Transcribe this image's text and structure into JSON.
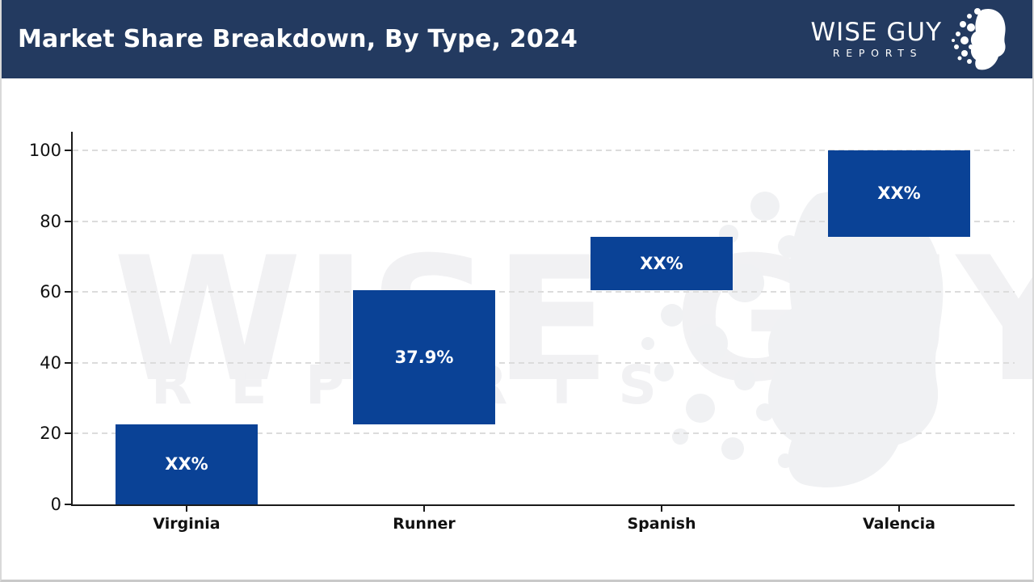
{
  "header": {
    "title": "Market Share Breakdown, By Type, 2024",
    "bg_color": "#233a60",
    "logo": {
      "line1": "WISE GUY",
      "line2": "REPORTS"
    }
  },
  "watermark": {
    "line1": "WISE GUY",
    "line2": "REPORTS"
  },
  "chart_data": {
    "type": "bar",
    "subtype": "waterfall",
    "title": "Market Share Breakdown, By Type, 2024",
    "categories": [
      "Virginia",
      "Runner",
      "Spanish",
      "Valencia"
    ],
    "series": [
      {
        "name": "Market share (%)",
        "segments": [
          {
            "category": "Virginia",
            "start": 0,
            "end": 22.6,
            "label": "XX%"
          },
          {
            "category": "Runner",
            "start": 22.6,
            "end": 60.5,
            "label": "37.9%"
          },
          {
            "category": "Spanish",
            "start": 60.5,
            "end": 75.6,
            "label": "XX%"
          },
          {
            "category": "Valencia",
            "start": 75.6,
            "end": 100,
            "label": "XX%"
          }
        ]
      }
    ],
    "xlabel": "",
    "ylabel": "",
    "ylim": [
      0,
      105
    ],
    "yticks": [
      0,
      20,
      40,
      60,
      80,
      100
    ],
    "grid": "horizontal-dashed",
    "legend": "none",
    "bar_color": "#0a4296",
    "label_color": "#ffffff"
  }
}
